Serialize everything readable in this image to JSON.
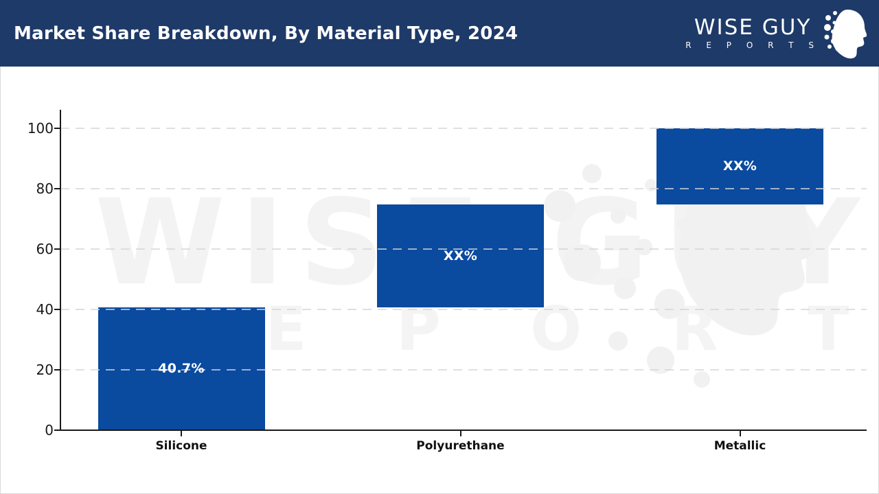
{
  "header": {
    "title": "Market Share Breakdown, By Material Type, 2024",
    "bg_color": "#1e3a68",
    "logo": {
      "line1": "WISE GUY",
      "line2": "R E P O R T S"
    }
  },
  "watermark": {
    "line1": "WISE GUY",
    "line2": "R E P O R T S"
  },
  "chart_data": {
    "type": "bar",
    "subtype": "waterfall",
    "title": "Market Share Breakdown, By Material Type, 2024",
    "categories": [
      "Silicone",
      "Polyurethane",
      "Metallic"
    ],
    "segments": [
      {
        "category": "Silicone",
        "start": 0,
        "end": 40.7,
        "label": "40.7%"
      },
      {
        "category": "Polyurethane",
        "start": 40.7,
        "end": 74.8,
        "label": "XX%"
      },
      {
        "category": "Metallic",
        "start": 74.8,
        "end": 100,
        "label": "XX%"
      }
    ],
    "bar_color": "#0a4a9f",
    "bar_label_color": "#ffffff",
    "ylim": [
      0,
      105
    ],
    "yticks": [
      "0",
      "20",
      "40",
      "60",
      "80",
      "100"
    ],
    "xlabel": "",
    "ylabel": "",
    "grid": "horizontal dashed, drawn above bars",
    "legend": "none"
  }
}
